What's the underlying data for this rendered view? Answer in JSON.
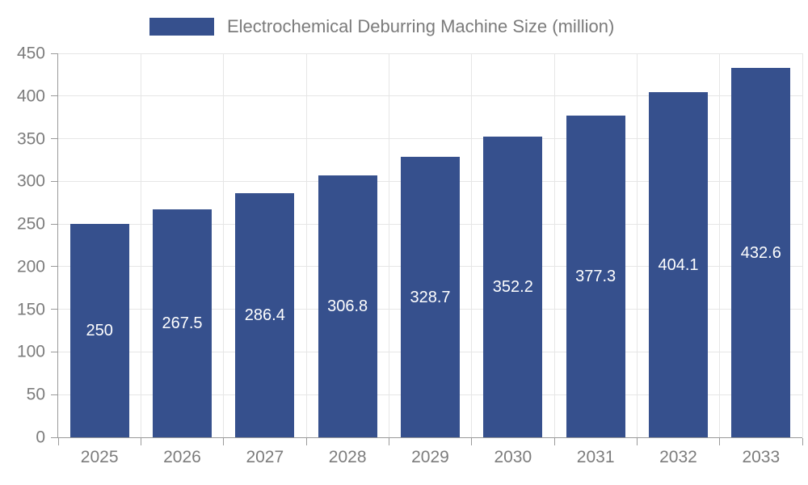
{
  "chart_data": {
    "type": "bar",
    "title": "Electrochemical Deburring Machine Size (million)",
    "series_name": "Electrochemical Deburring Machine Size (million)",
    "categories": [
      "2025",
      "2026",
      "2027",
      "2028",
      "2029",
      "2030",
      "2031",
      "2032",
      "2033"
    ],
    "values": [
      250,
      267.5,
      286.4,
      306.8,
      328.7,
      352.2,
      377.3,
      404.1,
      432.6
    ],
    "value_labels": [
      "250",
      "267.5",
      "286.4",
      "306.8",
      "328.7",
      "352.2",
      "377.3",
      "404.1",
      "432.6"
    ],
    "xlabel": "",
    "ylabel": "",
    "ylim": [
      0,
      450
    ],
    "ytick_step": 50,
    "ytick_labels": [
      "0",
      "50",
      "100",
      "150",
      "200",
      "250",
      "300",
      "350",
      "400",
      "450"
    ],
    "grid": true,
    "legend_position": "top",
    "colors": {
      "bar": "#36508D",
      "grid": "#e6e6e6",
      "axis": "#9a9a9a",
      "tick": "#9a9a9a",
      "label_text": "#7c7c7c",
      "value_text": "#ffffff",
      "legend_text": "#7b7b7b"
    }
  }
}
